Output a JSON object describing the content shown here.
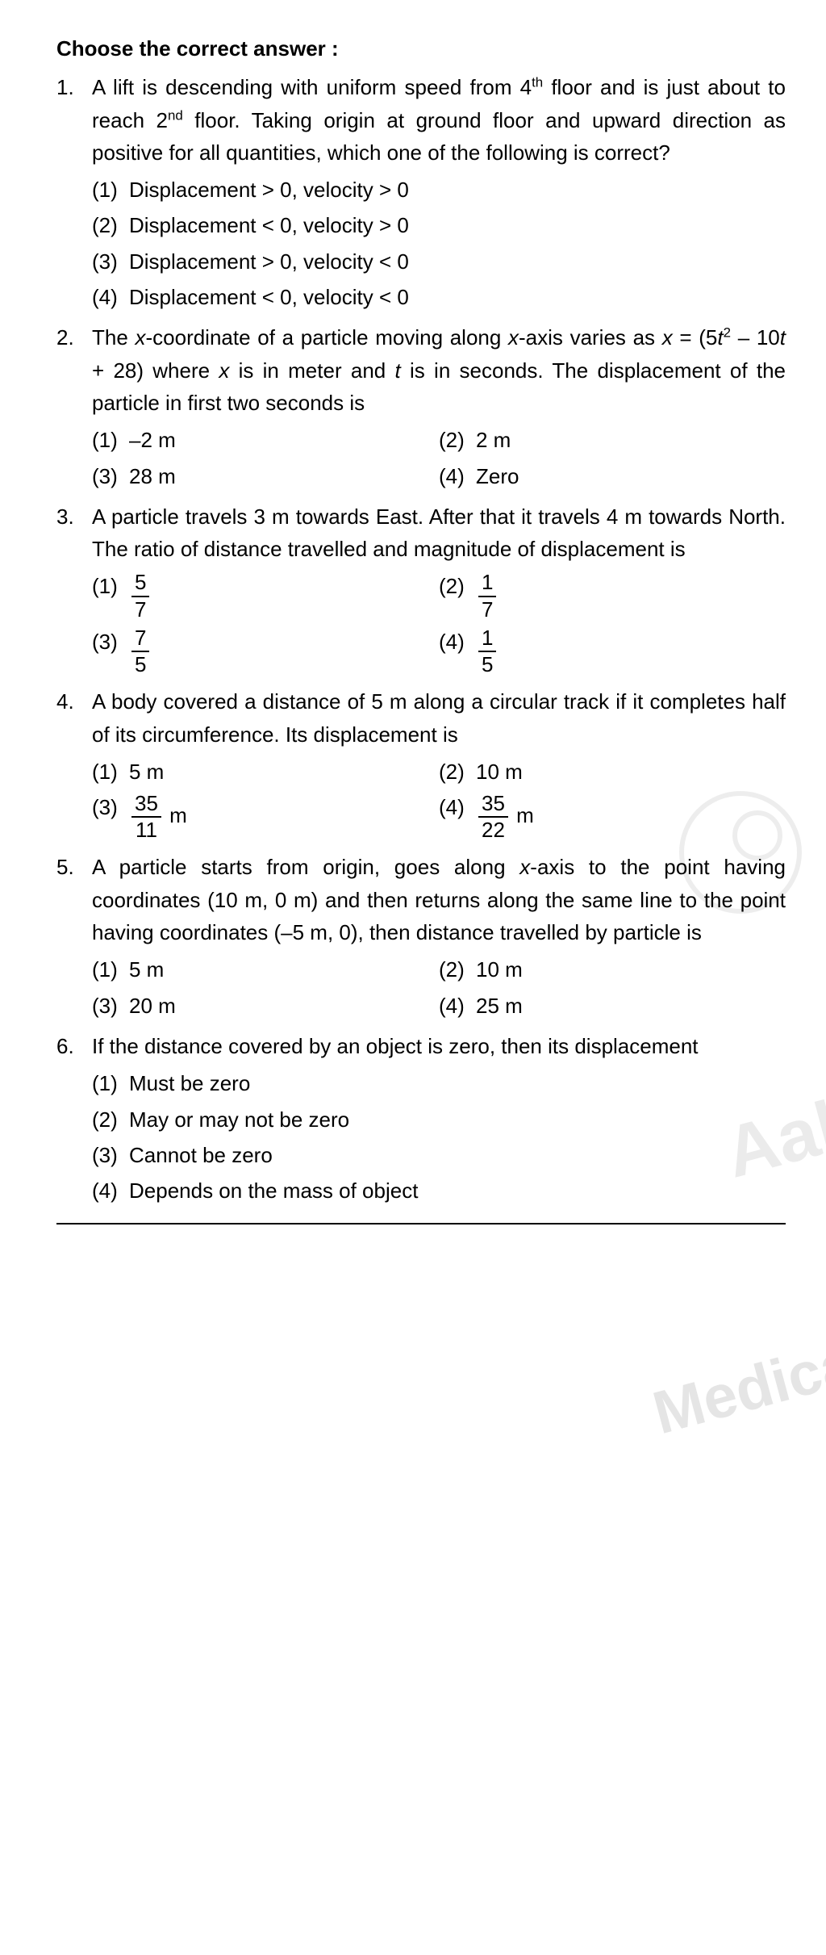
{
  "heading": "Choose the correct answer :",
  "watermarks": [
    "Aak",
    "Medical|II"
  ],
  "questions": [
    {
      "num": "1.",
      "text": "A lift is descending with uniform speed from 4<sup>th</sup> floor and is just about to reach 2<sup>nd</sup> floor. Taking origin at ground floor and upward direction as positive for all quantities, which one of the following is correct?",
      "layout": "vertical",
      "options": [
        {
          "label": "(1)",
          "val": "Displacement > 0, velocity > 0"
        },
        {
          "label": "(2)",
          "val": "Displacement < 0, velocity > 0"
        },
        {
          "label": "(3)",
          "val": "Displacement > 0, velocity < 0"
        },
        {
          "label": "(4)",
          "val": "Displacement < 0, velocity < 0"
        }
      ]
    },
    {
      "num": "2.",
      "text": "The <span class=\"italic\">x</span>-coordinate of a particle moving along <span class=\"italic\">x</span>-axis varies as <span class=\"italic\">x</span> = (5<span class=\"italic\">t</span><sup>2</sup> – 10<span class=\"italic\">t</span> + 28) where <span class=\"italic\">x</span> is in meter and <span class=\"italic\">t</span> is in seconds. The displacement of the particle in first two seconds is",
      "layout": "two-col",
      "options": [
        {
          "label": "(1)",
          "val": "–2 m"
        },
        {
          "label": "(2)",
          "val": "2 m"
        },
        {
          "label": "(3)",
          "val": "28 m"
        },
        {
          "label": "(4)",
          "val": "Zero"
        }
      ]
    },
    {
      "num": "3.",
      "text": "A particle travels 3 m towards East. After that it travels 4 m towards North. The ratio of distance travelled and magnitude of displacement is",
      "layout": "two-col-frac",
      "options": [
        {
          "label": "(1)",
          "num": "5",
          "den": "7"
        },
        {
          "label": "(2)",
          "num": "1",
          "den": "7"
        },
        {
          "label": "(3)",
          "num": "7",
          "den": "5"
        },
        {
          "label": "(4)",
          "num": "1",
          "den": "5"
        }
      ]
    },
    {
      "num": "4.",
      "text": "A body covered a distance of 5 m along a circular track if it completes half of its circumference. Its displacement is",
      "layout": "two-col-mixed",
      "options": [
        {
          "label": "(1)",
          "val": "5 m"
        },
        {
          "label": "(2)",
          "val": "10 m"
        },
        {
          "label": "(3)",
          "num": "35",
          "den": "11",
          "suffix": " m"
        },
        {
          "label": "(4)",
          "num": "35",
          "den": "22",
          "suffix": " m"
        }
      ]
    },
    {
      "num": "5.",
      "text": "A particle starts from origin, goes along <span class=\"italic\">x</span>-axis to the point having coordinates (10 m, 0 m) and then returns along the same line to the point having coordinates (–5 m, 0), then distance travelled by particle is",
      "layout": "two-col",
      "options": [
        {
          "label": "(1)",
          "val": "5 m"
        },
        {
          "label": "(2)",
          "val": "10 m"
        },
        {
          "label": "(3)",
          "val": "20 m"
        },
        {
          "label": "(4)",
          "val": "25 m"
        }
      ]
    },
    {
      "num": "6.",
      "text": "If the distance covered by an object is zero, then its displacement",
      "layout": "vertical",
      "options": [
        {
          "label": "(1)",
          "val": "Must be zero"
        },
        {
          "label": "(2)",
          "val": "May or may not be zero"
        },
        {
          "label": "(3)",
          "val": "Cannot be zero"
        },
        {
          "label": "(4)",
          "val": "Depends on the mass of object"
        }
      ]
    }
  ]
}
